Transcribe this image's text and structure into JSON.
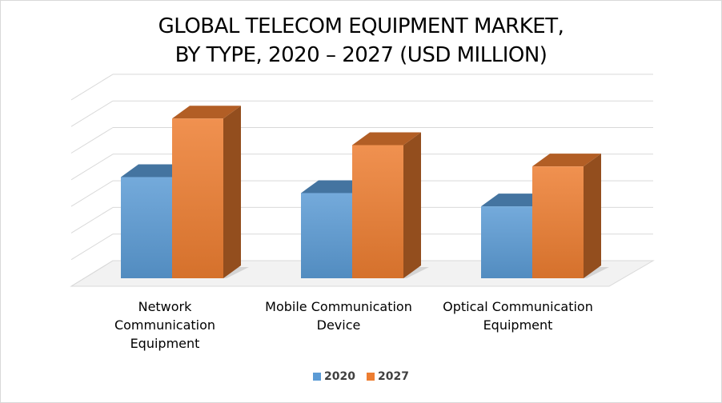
{
  "chart_data": {
    "type": "bar",
    "title_line1": "GLOBAL TELECOM EQUIPMENT MARKET,",
    "title_line2": "BY TYPE, 2020 – 2027 (USD MILLION)",
    "categories": [
      "Network Communication Equipment",
      "Mobile Communication Device",
      "Optical Communication Equipment"
    ],
    "category_lines": [
      [
        "Network",
        "Communication",
        "Equipment"
      ],
      [
        "Mobile Communication",
        "Device"
      ],
      [
        "Optical Communication",
        "Equipment"
      ]
    ],
    "series": [
      {
        "name": "2020",
        "values": [
          3.8,
          3.2,
          2.7
        ],
        "color": "#5b9bd5"
      },
      {
        "name": "2027",
        "values": [
          6.0,
          5.0,
          4.2
        ],
        "color": "#ed7d31"
      }
    ],
    "ylim": [
      0,
      7
    ],
    "grid": true,
    "legend_position": "bottom",
    "style": "3d-clustered-column"
  }
}
